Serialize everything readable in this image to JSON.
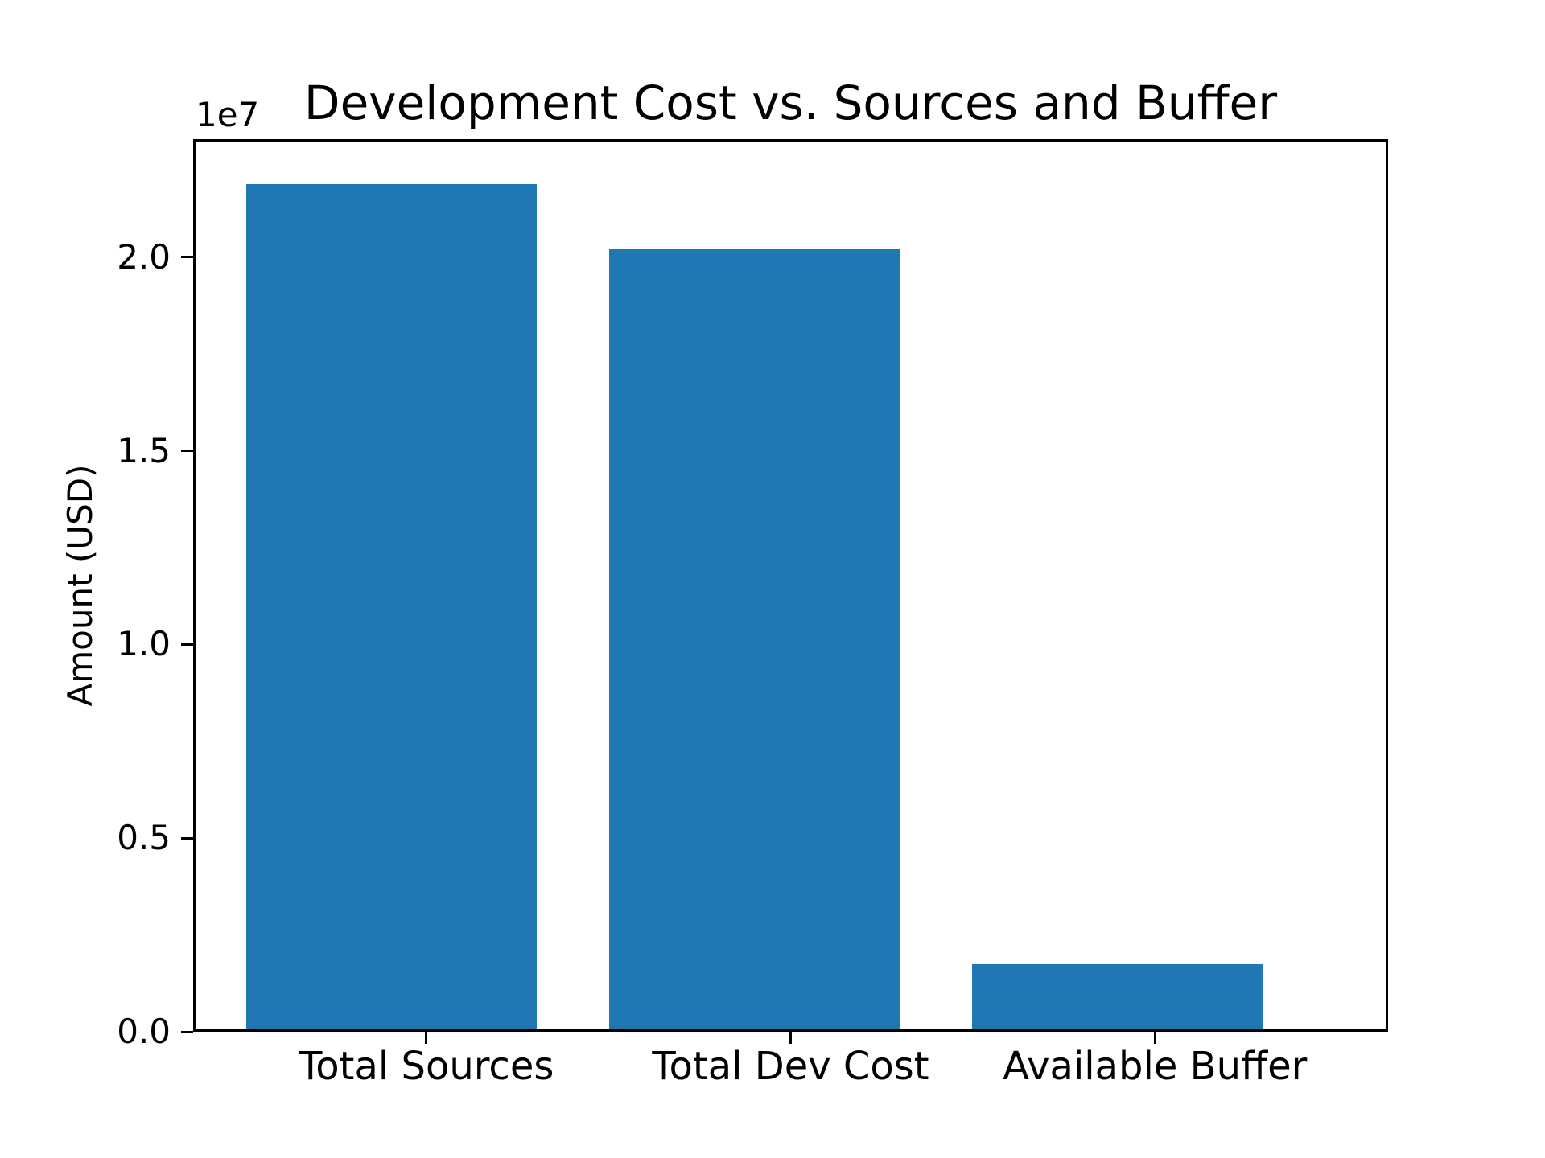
{
  "chart_data": {
    "type": "bar",
    "title": "Development Cost vs. Sources and Buffer",
    "xlabel": "",
    "ylabel": "Amount (USD)",
    "offset_label": "1e7",
    "categories": [
      "Total Sources",
      "Total Dev Cost",
      "Available Buffer"
    ],
    "values": [
      21950000,
      20250000,
      1700000
    ],
    "bar_color": "#1f77b4",
    "axis_color": "#000000",
    "ylim": [
      0,
      23047500
    ],
    "yticks": {
      "values": [
        0,
        5000000,
        10000000,
        15000000,
        20000000
      ],
      "labels": [
        "0.0",
        "0.5",
        "1.0",
        "1.5",
        "2.0"
      ]
    },
    "grid": false,
    "legend": false,
    "bar_width_fraction": 0.8,
    "x_margin_fraction": 0.14
  }
}
